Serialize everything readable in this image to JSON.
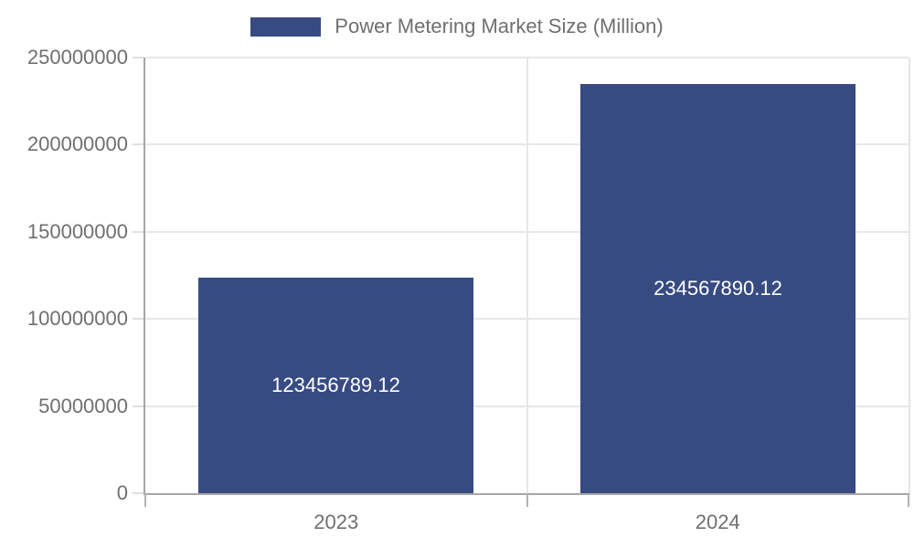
{
  "legend": {
    "label": "Power Metering Market Size (Million)"
  },
  "chart_data": {
    "type": "bar",
    "title": "Power Metering Market Size (Million)",
    "categories": [
      "2023",
      "2024"
    ],
    "series": [
      {
        "name": "Power Metering Market Size (Million)",
        "values": [
          123456789.12,
          234567890.12
        ],
        "value_labels": [
          "123456789.12",
          "234567890.12"
        ]
      }
    ],
    "xlabel": "",
    "ylabel": "",
    "ylim": [
      0,
      250000000
    ],
    "y_ticks": [
      0,
      50000000,
      100000000,
      150000000,
      200000000,
      250000000
    ],
    "y_tick_labels": [
      "0",
      "50000000",
      "100000000",
      "150000000",
      "200000000",
      "250000000"
    ],
    "grid": true,
    "legend_position": "top"
  },
  "colors": {
    "bar": "#374b82",
    "axis": "#a6a6a6",
    "grid": "#e7e7e7",
    "tick_text": "#6f6f6f",
    "bar_label_text": "#ffffff",
    "background": "#ffffff"
  }
}
